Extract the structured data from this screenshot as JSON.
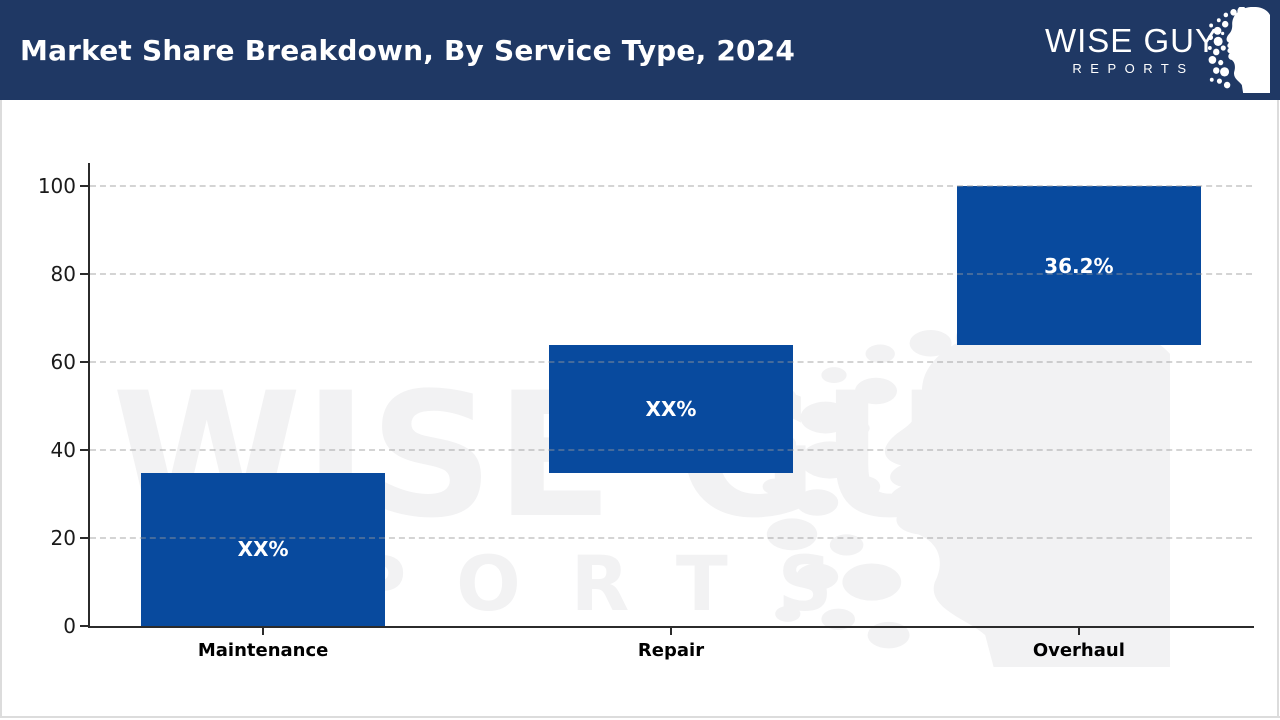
{
  "header": {
    "title": "Market Share Breakdown, By Service Type, 2024",
    "logo": {
      "line1": "WISE GUY",
      "line2": "REPORTS"
    }
  },
  "watermark": {
    "line1": "WISE GUY",
    "line2": "REPORTS"
  },
  "colors": {
    "header_bg": "#1f3864",
    "bar": "#084a9e",
    "grid": "#9a9a9a",
    "axis": "#2b2b2b",
    "watermark": "#f2f2f3",
    "bar_label_text": "#ffffff",
    "title_text": "#ffffff"
  },
  "chart_data": {
    "type": "bar",
    "variant": "floating-waterfall",
    "title": "Market Share Breakdown, By Service Type, 2024",
    "xlabel": "",
    "ylabel": "",
    "categories": [
      "Maintenance",
      "Repair",
      "Overhaul"
    ],
    "series": [
      {
        "name": "Market Share",
        "segments": [
          {
            "category": "Maintenance",
            "start": 0,
            "end": 34.8,
            "value": 34.8,
            "label": "XX%"
          },
          {
            "category": "Repair",
            "start": 34.8,
            "end": 63.8,
            "value": 29.0,
            "label": "XX%"
          },
          {
            "category": "Overhaul",
            "start": 63.8,
            "end": 100,
            "value": 36.2,
            "label": "36.2%"
          }
        ]
      }
    ],
    "ylim": [
      0,
      100
    ],
    "yticks": [
      0,
      20,
      40,
      60,
      80,
      100
    ],
    "grid": "dashed-horizontal",
    "legend": "none"
  }
}
